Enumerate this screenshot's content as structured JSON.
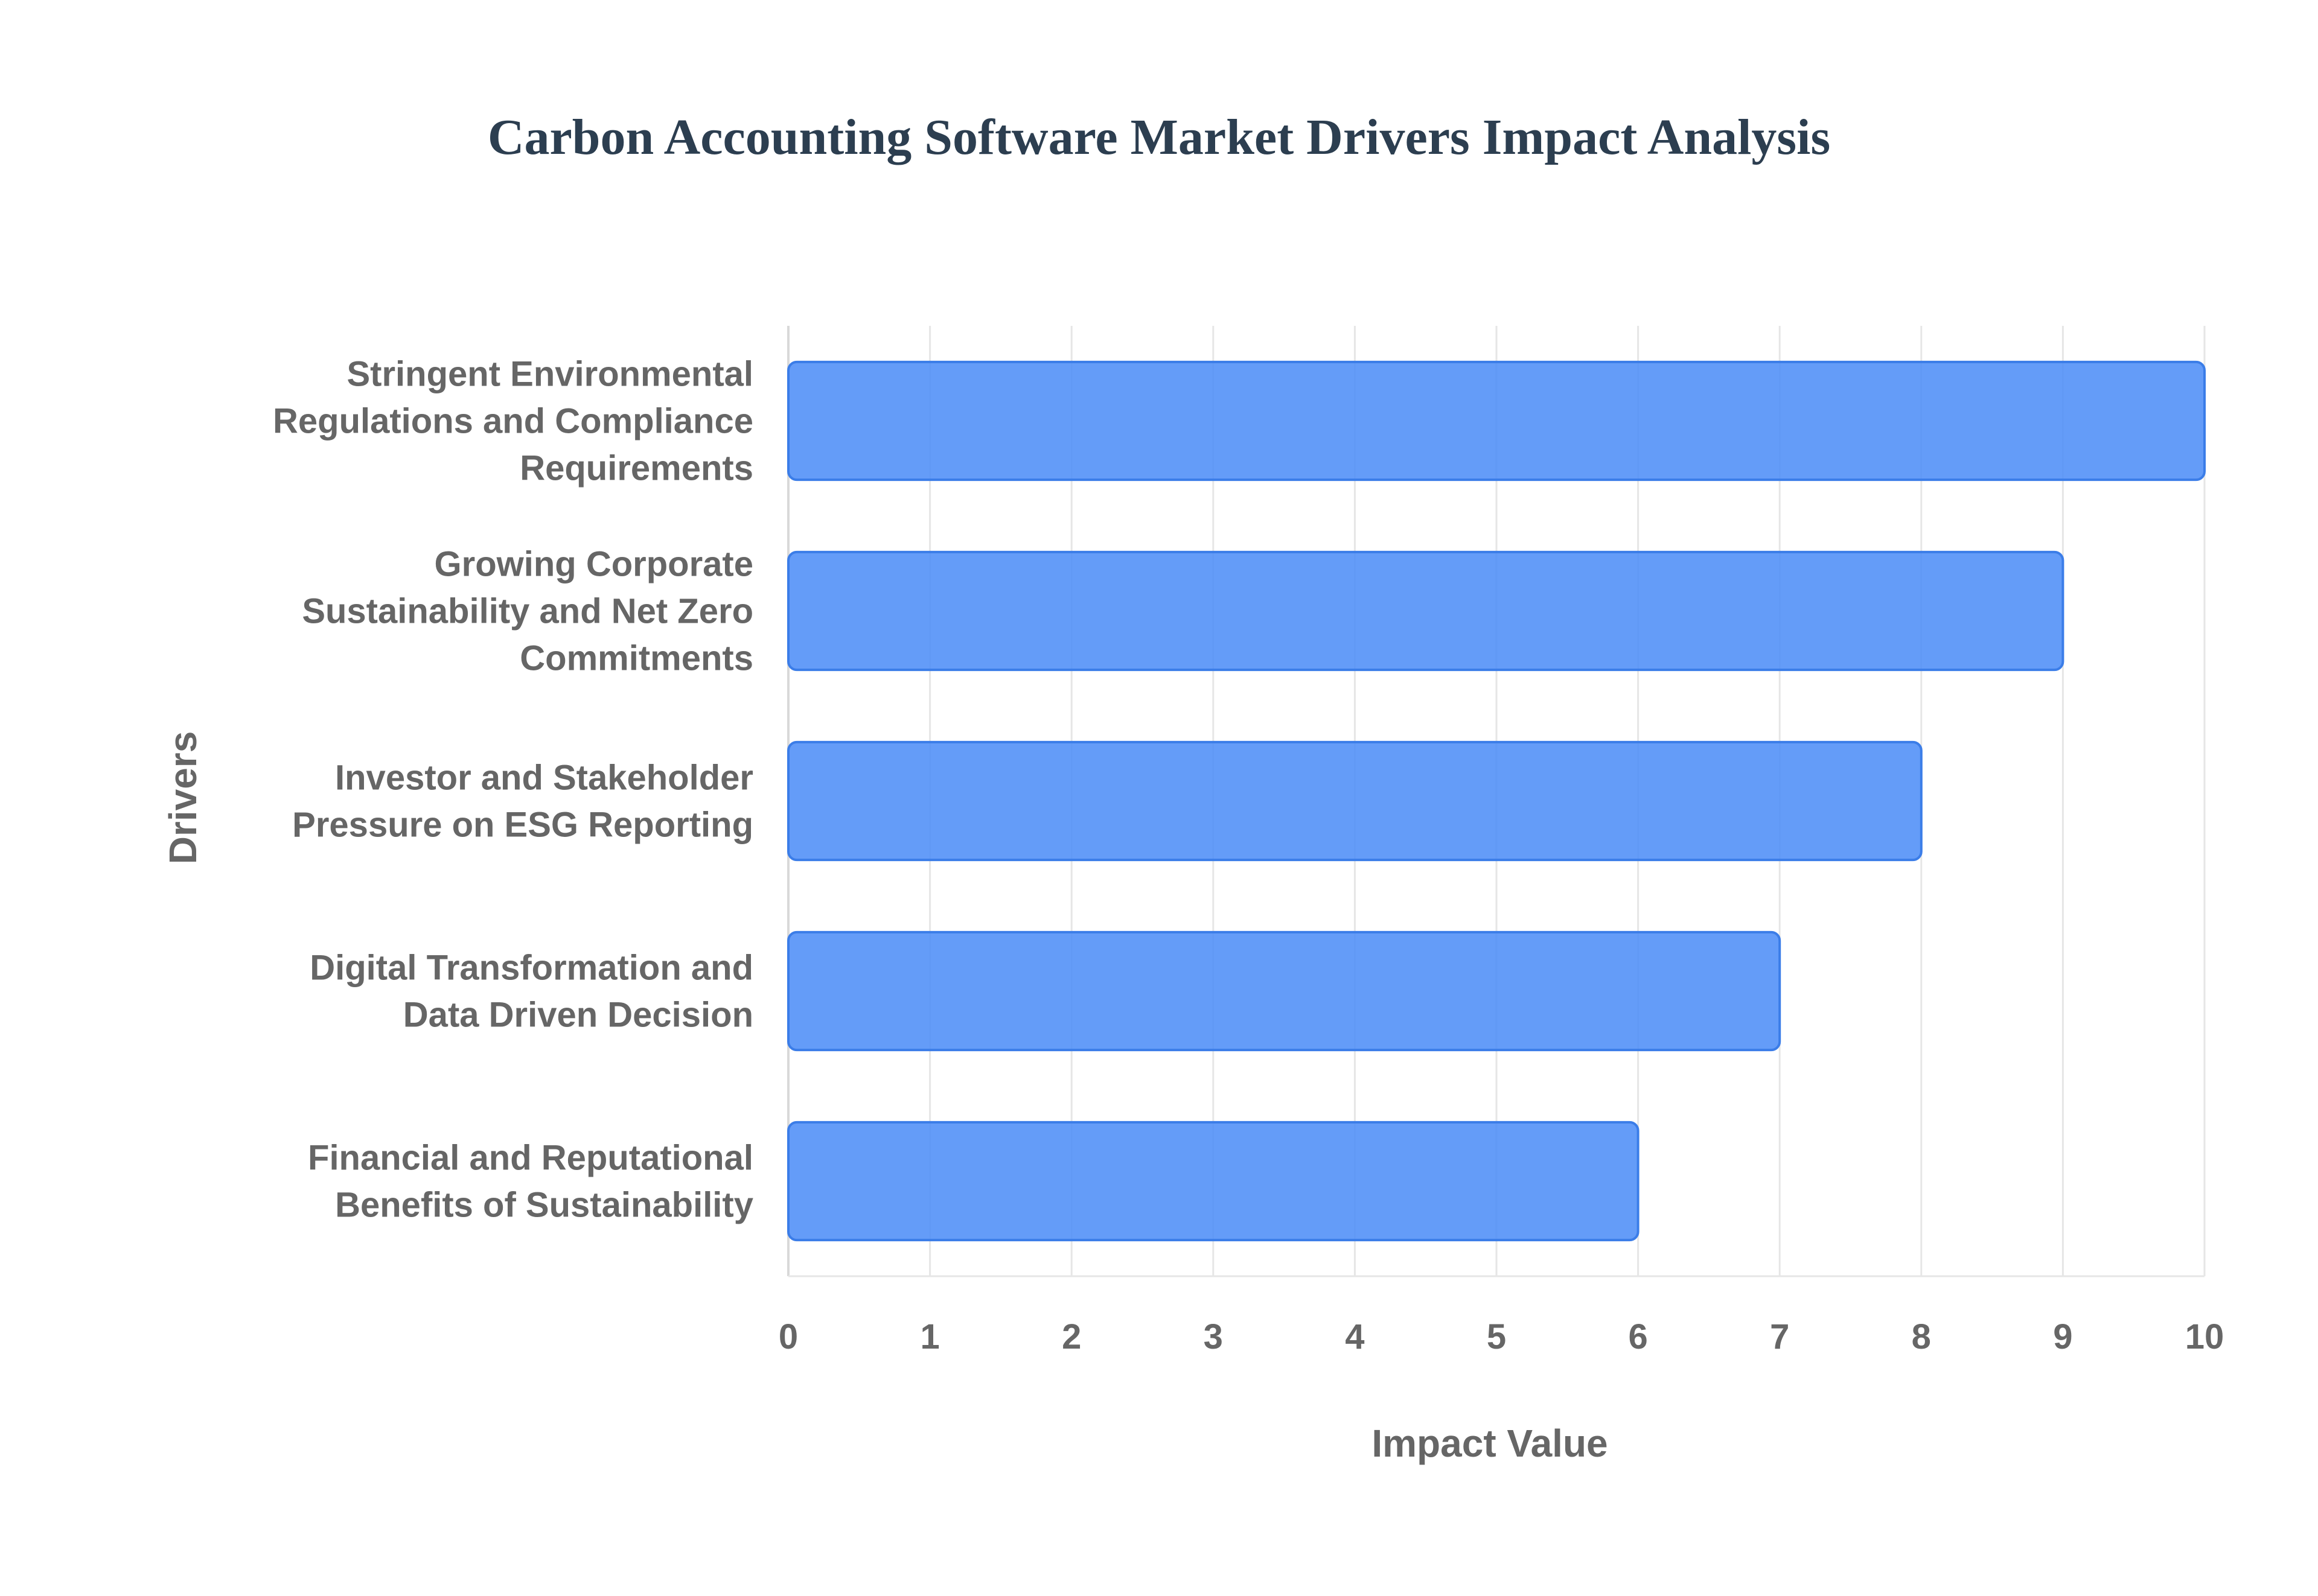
{
  "chart_data": {
    "type": "bar",
    "orientation": "horizontal",
    "title": "Carbon Accounting Software Market Drivers Impact Analysis",
    "xlabel": "Impact Value",
    "ylabel": "Drivers",
    "categories": [
      [
        "Stringent Environmental",
        "Regulations and Compliance",
        "Requirements"
      ],
      [
        "Growing Corporate",
        "Sustainability and Net Zero",
        "Commitments"
      ],
      [
        "Investor and Stakeholder",
        "Pressure on ESG Reporting"
      ],
      [
        "Digital Transformation and",
        "Data Driven Decision"
      ],
      [
        "Financial and Reputational",
        "Benefits of Sustainability"
      ]
    ],
    "values": [
      10,
      9,
      8,
      7,
      6
    ],
    "xlim": [
      0,
      10
    ],
    "xticks": [
      "0",
      "1",
      "2",
      "3",
      "4",
      "5",
      "6",
      "7",
      "8",
      "9",
      "10"
    ],
    "grid": true,
    "bar_color": "#4f8ef7"
  }
}
